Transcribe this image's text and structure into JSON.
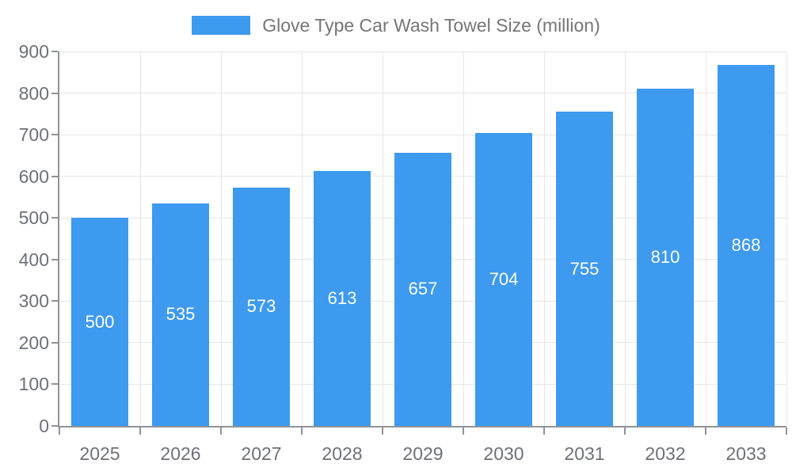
{
  "chart_data": {
    "type": "bar",
    "title": "Glove Type Car Wash Towel Size (million)",
    "series_name": "Glove Type Car Wash Towel Size (million)",
    "categories": [
      "2025",
      "2026",
      "2027",
      "2028",
      "2029",
      "2030",
      "2031",
      "2032",
      "2033"
    ],
    "values": [
      500,
      535,
      573,
      613,
      657,
      704,
      755,
      810,
      868
    ],
    "xlabel": "",
    "ylabel": "",
    "ylim": [
      0,
      900
    ],
    "ytick_interval": 100,
    "ytick_labels": [
      "0",
      "100",
      "200",
      "300",
      "400",
      "500",
      "600",
      "700",
      "800",
      "900"
    ],
    "grid": true,
    "legend_position": "top-center",
    "bar_label_position": "inside-center",
    "colors": {
      "bar": "#3d9aef",
      "bar_label": "#ffffff",
      "axis_label": "#6e7079",
      "axis_line": "#8f9399",
      "gridline": "#e6e6e6",
      "legend_text": "#757575",
      "background": "#ffffff"
    }
  }
}
